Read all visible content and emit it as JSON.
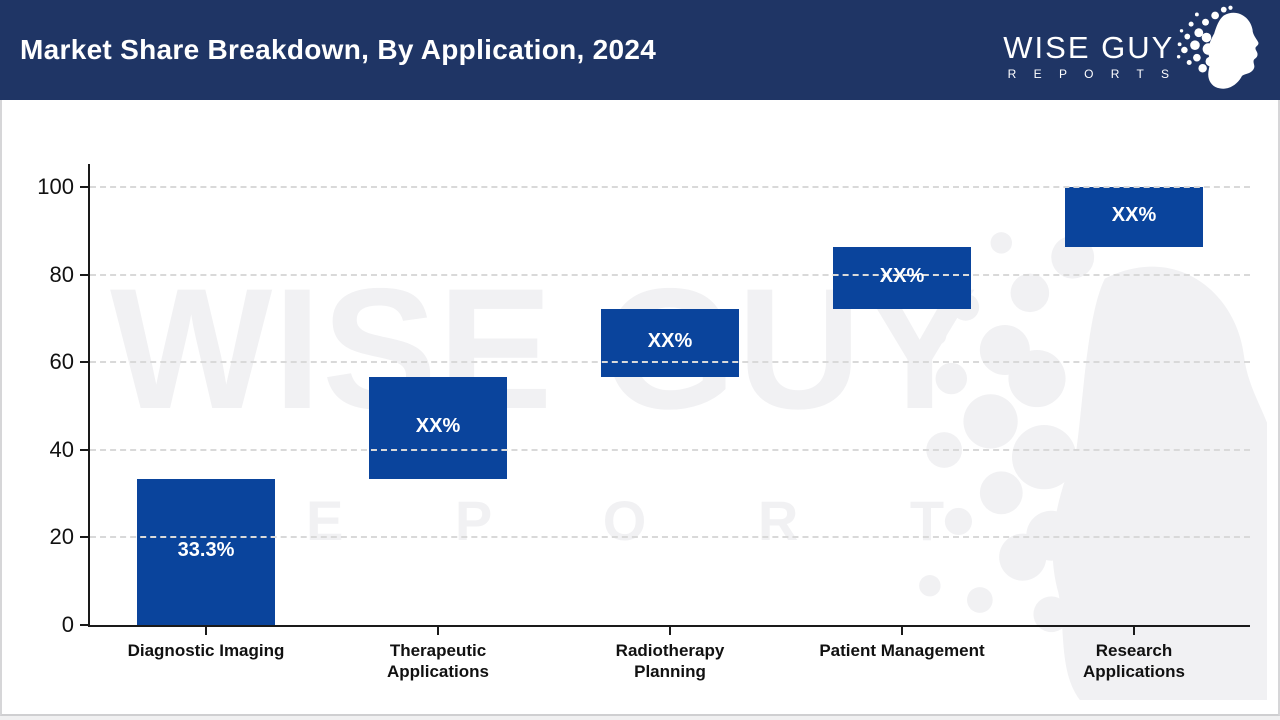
{
  "header": {
    "title": "Market Share Breakdown, By Application, 2024",
    "logo": {
      "name": "WISE GUY",
      "subtext": "R E P O R T S"
    }
  },
  "watermark": {
    "line1": "WISE GUY",
    "line2": "R E P O R T S"
  },
  "colors": {
    "header_bg": "#1f3565",
    "bar": "#0a449c",
    "bar_label_text": "#ffffff",
    "title_text": "#ffffff",
    "watermark": "#f1f1f3",
    "grid": "#d9d9d9",
    "axis": "#1a1a1a"
  },
  "chart_data": {
    "type": "bar",
    "subtype": "waterfall",
    "title": "Market Share Breakdown, By Application, 2024",
    "categories": [
      "Diagnostic Imaging",
      "Therapeutic\nApplications",
      "Radiotherapy\nPlanning",
      "Patient Management",
      "Research\nApplications"
    ],
    "segments": [
      {
        "category": "Diagnostic Imaging",
        "start": 0,
        "end": 33.3,
        "label": "33.3%"
      },
      {
        "category": "Therapeutic Applications",
        "start": 33.3,
        "end": 56.6,
        "label": "XX%"
      },
      {
        "category": "Radiotherapy Planning",
        "start": 56.6,
        "end": 72.2,
        "label": "XX%"
      },
      {
        "category": "Patient Management",
        "start": 72.2,
        "end": 86.4,
        "label": "XX%"
      },
      {
        "category": "Research Applications",
        "start": 86.4,
        "end": 100,
        "label": "XX%"
      }
    ],
    "xlabel": "",
    "ylabel": "",
    "ylim": [
      0,
      100
    ],
    "yticks": [
      0,
      20,
      40,
      60,
      80,
      100
    ],
    "grid": "horizontal-dashed",
    "legend": "none",
    "bar_color": "#0a449c"
  }
}
